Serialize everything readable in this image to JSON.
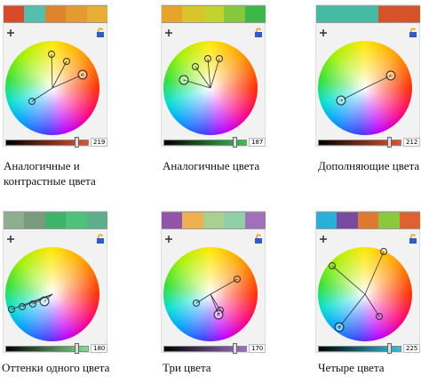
{
  "panels": [
    {
      "swatches": [
        "#d94a2b",
        "#55bfae",
        "#e0842c",
        "#e49a2e",
        "#e8ae34"
      ],
      "slider_color": "#e0542a",
      "slider_value": 219,
      "caption_lines": [
        "Аналогичные и",
        "контрастные цвета"
      ]
    },
    {
      "swatches": [
        "#e8a32a",
        "#d8c52a",
        "#c4d22e",
        "#86c83c",
        "#3cb84a"
      ],
      "slider_color": "#3cc24a",
      "slider_value": 187,
      "caption_lines": [
        "Аналогичные цвета"
      ]
    },
    {
      "swatches": [
        "#45bba5",
        "#45bba5",
        "#45bba5",
        "#d6532a",
        "#d6532a"
      ],
      "slider_color": "#e0542a",
      "slider_value": 212,
      "caption_lines": [
        "Дополняющие цвета"
      ]
    },
    {
      "swatches": [
        "#8eae8e",
        "#7a9a7e",
        "#3cb46a",
        "#4cc27a",
        "#5cae8c"
      ],
      "slider_color": "#7ee08a",
      "slider_value": 180,
      "caption_lines": [
        "Оттенки одного цвета"
      ]
    },
    {
      "swatches": [
        "#9055a8",
        "#f0b050",
        "#a8d090",
        "#90d0a8",
        "#a070b8"
      ],
      "slider_color": "#a070c8",
      "slider_value": 170,
      "caption_lines": [
        "Три цвета"
      ]
    },
    {
      "swatches": [
        "#28b0d8",
        "#7a4aa0",
        "#e07830",
        "#8cc83c",
        "#e06030"
      ],
      "slider_color": "#30c0e0",
      "slider_value": 225,
      "caption_lines": [
        "Четыре цвета"
      ]
    }
  ]
}
